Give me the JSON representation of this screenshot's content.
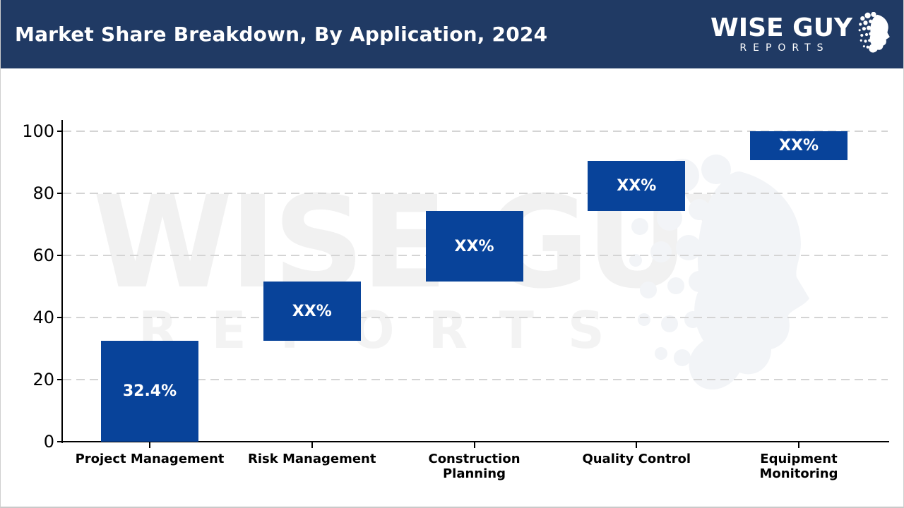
{
  "header": {
    "title": "Market Share Breakdown, By Application, 2024",
    "bg_color": "#203a64",
    "logo": {
      "wordmark": "WISE GUY",
      "subtitle": "REPORTS"
    }
  },
  "watermark": {
    "line1": "WISE GUY",
    "line2": "REPORTS"
  },
  "chart_data": {
    "type": "bar",
    "subtype": "waterfall",
    "title": "Market Share Breakdown, By Application, 2024",
    "categories": [
      "Project Management",
      "Risk Management",
      "Construction Planning",
      "Quality Control",
      "Equipment Monitoring"
    ],
    "segments": [
      {
        "category": "Project Management",
        "label_lines": [
          "Project Management"
        ],
        "base": 0,
        "top": 32.4,
        "value_label": "32.4%"
      },
      {
        "category": "Risk Management",
        "label_lines": [
          "Risk Management"
        ],
        "base": 32.4,
        "top": 51.5,
        "value_label": "XX%"
      },
      {
        "category": "Construction Planning",
        "label_lines": [
          "Construction",
          "Planning"
        ],
        "base": 51.5,
        "top": 74.3,
        "value_label": "XX%"
      },
      {
        "category": "Quality Control",
        "label_lines": [
          "Quality Control"
        ],
        "base": 74.4,
        "top": 90.5,
        "value_label": "XX%"
      },
      {
        "category": "Equipment Monitoring",
        "label_lines": [
          "Equipment",
          "Monitoring"
        ],
        "base": 90.6,
        "top": 100,
        "value_label": "XX%"
      }
    ],
    "ylim": [
      0,
      100
    ],
    "yticks": [
      0,
      20,
      40,
      60,
      80,
      100
    ],
    "xlabel": "",
    "ylabel": "",
    "grid": "horizontal-dashed",
    "legend": "none",
    "colors": {
      "bar": "#08439a",
      "value_label": "#ffffff",
      "axis": "#000000",
      "gridline": "#d4d4d4",
      "header_bg": "#203a64",
      "watermark": "#f1f1f1"
    }
  }
}
